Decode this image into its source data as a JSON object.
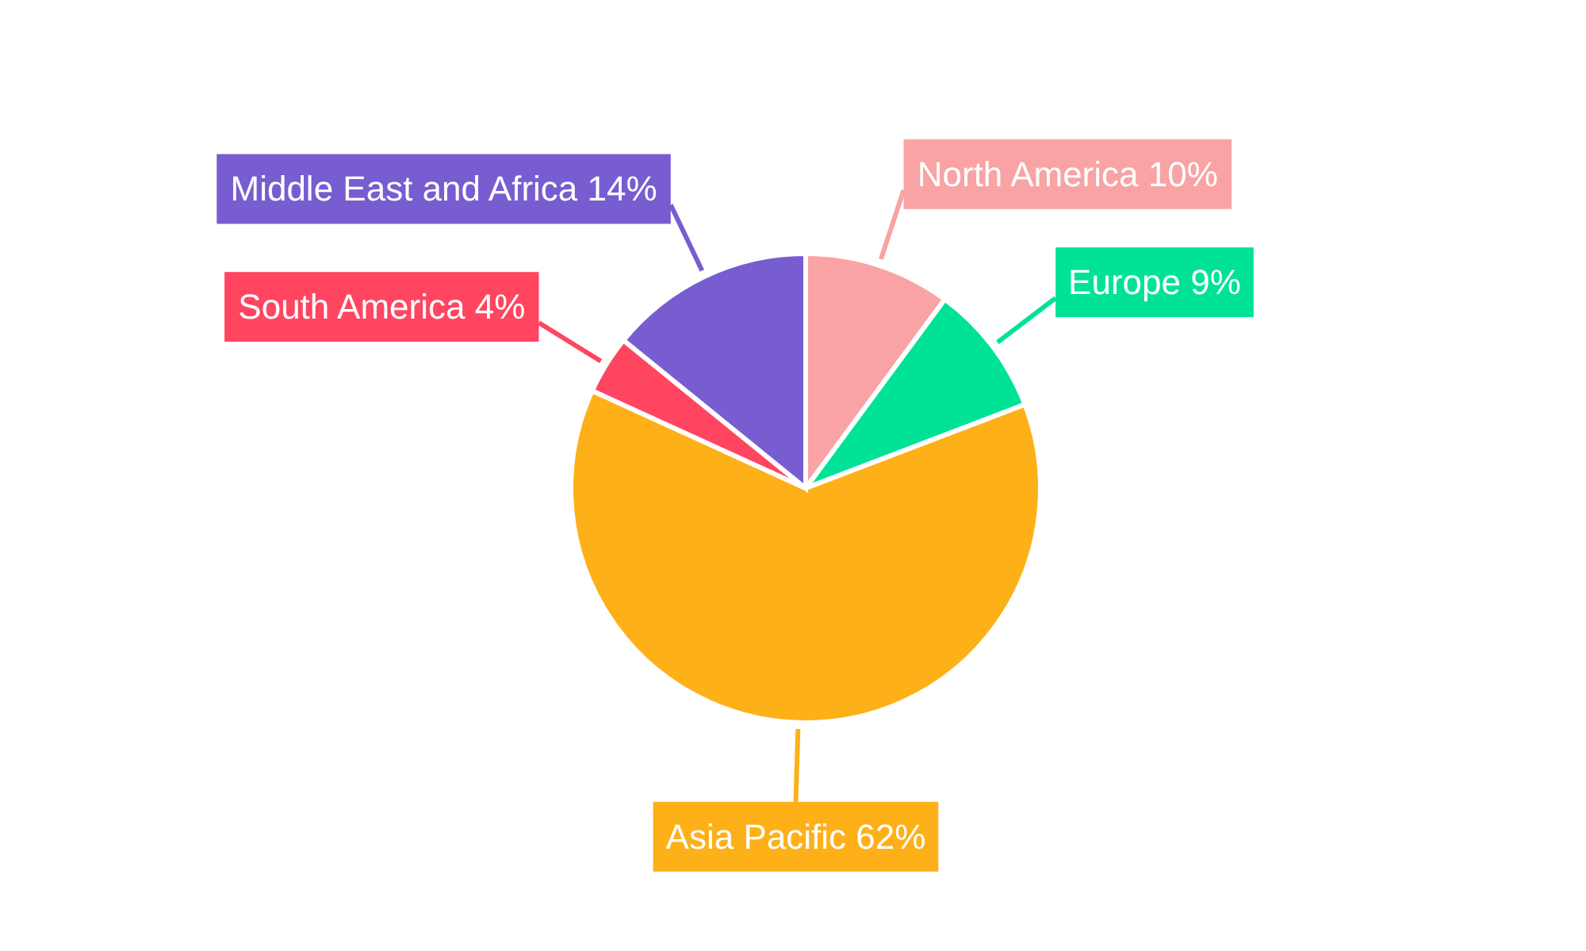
{
  "chart_data": {
    "type": "pie",
    "categories": [
      "North America",
      "Europe",
      "Asia Pacific",
      "South America",
      "Middle East and Africa"
    ],
    "values": [
      10,
      9,
      62,
      4,
      14
    ],
    "colors": [
      "#f9a3a4",
      "#00e396",
      "#feb019",
      "#ff4560",
      "#775dd0"
    ],
    "value_labels": [
      "10%",
      "9%",
      "62%",
      "4%",
      "14%"
    ]
  }
}
